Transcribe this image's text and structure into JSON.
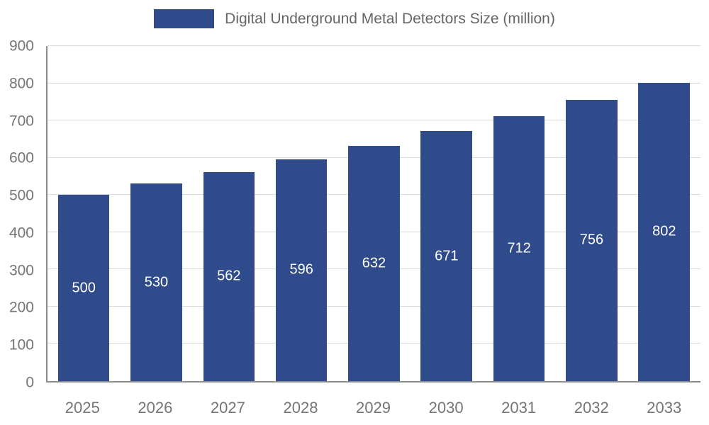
{
  "chart_data": {
    "type": "bar",
    "title": "Digital Underground Metal Detectors Size (million)",
    "categories": [
      "2025",
      "2026",
      "2027",
      "2028",
      "2029",
      "2030",
      "2031",
      "2032",
      "2033"
    ],
    "values": [
      500,
      530,
      562,
      596,
      632,
      671,
      712,
      756,
      802
    ],
    "xlabel": "",
    "ylabel": "",
    "ylim": [
      0,
      900
    ],
    "ytick_interval": 100,
    "grid": true,
    "legend_position": "top",
    "bar_color": "#2F4B8C",
    "value_label_color": "#ffffff",
    "axis_label_color": "#757575",
    "title_color": "#666666"
  }
}
